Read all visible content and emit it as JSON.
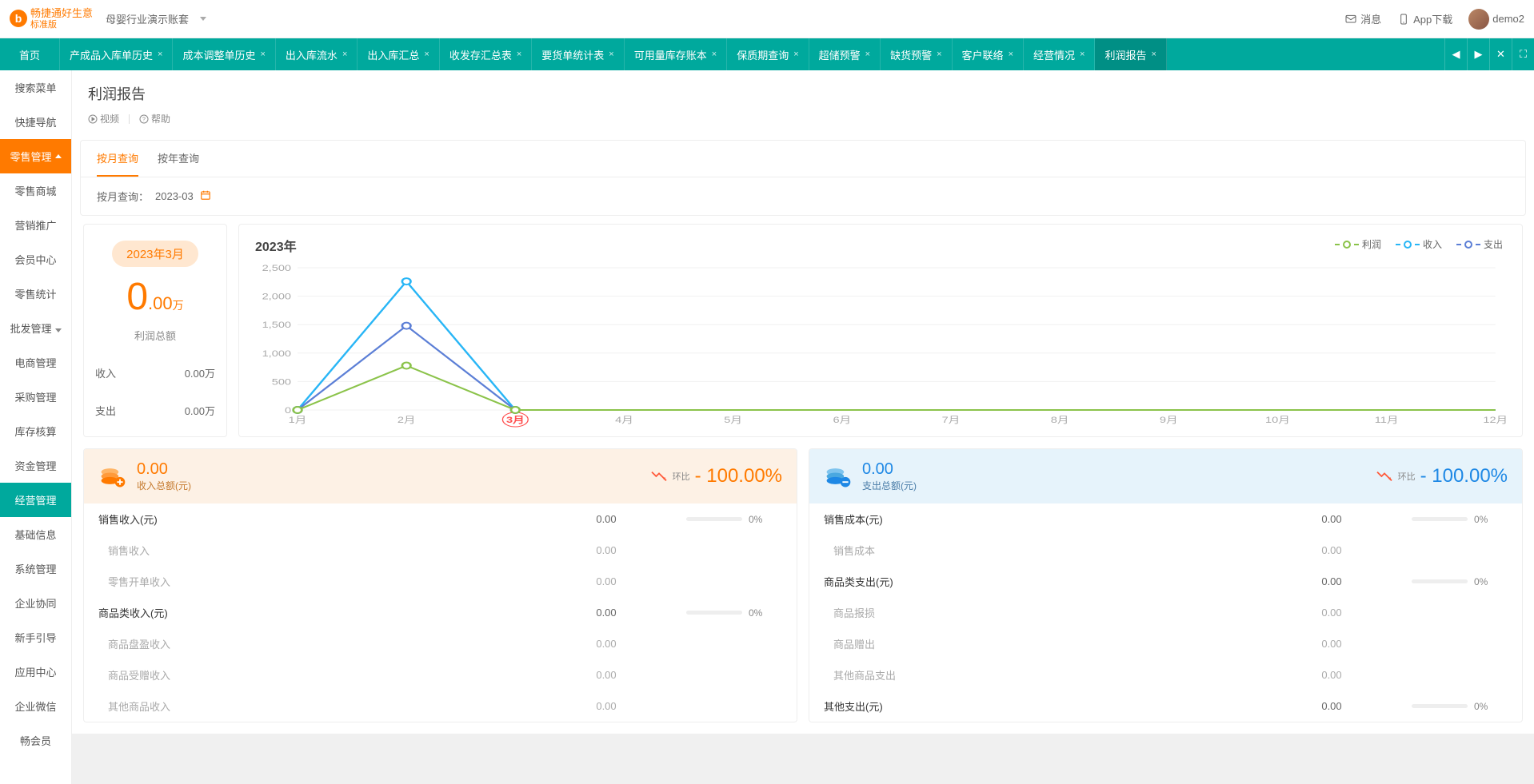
{
  "header": {
    "logo_text": "畅捷通好生意",
    "logo_sub": "标准版",
    "account": "母婴行业演示账套",
    "msg": "消息",
    "app": "App下载",
    "user": "demo2"
  },
  "tabs_ctrl": {
    "left": "◀",
    "right": "▶",
    "close": "✕",
    "expand": "⛶"
  },
  "tabs": [
    {
      "label": "首页",
      "closable": false
    },
    {
      "label": "产成品入库单历史",
      "closable": true
    },
    {
      "label": "成本调整单历史",
      "closable": true
    },
    {
      "label": "出入库流水",
      "closable": true
    },
    {
      "label": "出入库汇总",
      "closable": true
    },
    {
      "label": "收发存汇总表",
      "closable": true
    },
    {
      "label": "要货单统计表",
      "closable": true
    },
    {
      "label": "可用量库存账本",
      "closable": true
    },
    {
      "label": "保质期查询",
      "closable": true
    },
    {
      "label": "超储预警",
      "closable": true
    },
    {
      "label": "缺货预警",
      "closable": true
    },
    {
      "label": "客户联络",
      "closable": true
    },
    {
      "label": "经营情况",
      "closable": true
    },
    {
      "label": "利润报告",
      "closable": true,
      "active": true
    }
  ],
  "sidebar": [
    {
      "label": "搜索菜单"
    },
    {
      "label": "快捷导航"
    },
    {
      "label": "零售管理",
      "active_orange": true,
      "chev": "up"
    },
    {
      "label": "零售商城"
    },
    {
      "label": "营销推广"
    },
    {
      "label": "会员中心"
    },
    {
      "label": "零售统计"
    },
    {
      "label": "批发管理",
      "chev": "down"
    },
    {
      "label": "电商管理"
    },
    {
      "label": "采购管理"
    },
    {
      "label": "库存核算"
    },
    {
      "label": "资金管理"
    },
    {
      "label": "经营管理",
      "active_teal": true
    },
    {
      "label": "基础信息"
    },
    {
      "label": "系统管理"
    },
    {
      "label": "企业协同"
    },
    {
      "label": "新手引导"
    },
    {
      "label": "应用中心"
    },
    {
      "label": "企业微信"
    },
    {
      "label": "畅会员"
    }
  ],
  "page": {
    "title": "利润报告",
    "video": "视频",
    "help": "帮助",
    "sub_tabs": [
      "按月查询",
      "按年查询"
    ],
    "filter_label": "按月查询：",
    "filter_value": "2023-03"
  },
  "summary": {
    "period": "2023年3月",
    "big_int": "0",
    "big_dec": ".00",
    "big_unit": "万",
    "label": "利润总额",
    "rows": [
      {
        "k": "收入",
        "v": "0.00万"
      },
      {
        "k": "支出",
        "v": "0.00万"
      }
    ]
  },
  "chart": {
    "title": "2023年",
    "legend": [
      {
        "name": "利润",
        "color": "#8bc34a"
      },
      {
        "name": "收入",
        "color": "#29b6f6"
      },
      {
        "name": "支出",
        "color": "#5c7fd6"
      }
    ],
    "yticks": [
      0,
      500,
      1000,
      1500,
      2000,
      2500
    ],
    "ylim": [
      0,
      2500
    ],
    "xlabels": [
      "1月",
      "2月",
      "3月",
      "4月",
      "5月",
      "6月",
      "7月",
      "8月",
      "9月",
      "10月",
      "11月",
      "12月"
    ],
    "highlight_x": 2,
    "series": {
      "profit": [
        0,
        780,
        0,
        0,
        0,
        0,
        0,
        0,
        0,
        0,
        0,
        0
      ],
      "income": [
        0,
        2260,
        0,
        0,
        0,
        0,
        0,
        0,
        0,
        0,
        0,
        0
      ],
      "expense": [
        0,
        1480,
        0,
        0,
        0,
        0,
        0,
        0,
        0,
        0,
        0,
        0
      ]
    },
    "colors": {
      "profit": "#8bc34a",
      "income": "#29b6f6",
      "expense": "#5c7fd6"
    },
    "grid_color": "#f0f0f0",
    "axis_label_color": "#aaa"
  },
  "panels": {
    "income": {
      "value": "0.00",
      "label": "收入总额(元)",
      "hb_label": "环比",
      "hb_value": "- 100.00%",
      "accent": "#ff7a00",
      "rows": [
        {
          "label": "销售收入(元)",
          "val": "0.00",
          "pct": "0%",
          "sub": false
        },
        {
          "label": "销售收入",
          "val": "0.00",
          "sub": true
        },
        {
          "label": "零售开单收入",
          "val": "0.00",
          "sub": true
        },
        {
          "label": "商品类收入(元)",
          "val": "0.00",
          "pct": "0%",
          "sub": false
        },
        {
          "label": "商品盘盈收入",
          "val": "0.00",
          "sub": true
        },
        {
          "label": "商品受赠收入",
          "val": "0.00",
          "sub": true
        },
        {
          "label": "其他商品收入",
          "val": "0.00",
          "sub": true
        }
      ]
    },
    "expense": {
      "value": "0.00",
      "label": "支出总额(元)",
      "hb_label": "环比",
      "hb_value": "- 100.00%",
      "accent": "#1e88e5",
      "rows": [
        {
          "label": "销售成本(元)",
          "val": "0.00",
          "pct": "0%",
          "sub": false
        },
        {
          "label": "销售成本",
          "val": "0.00",
          "sub": true
        },
        {
          "label": "商品类支出(元)",
          "val": "0.00",
          "pct": "0%",
          "sub": false
        },
        {
          "label": "商品报损",
          "val": "0.00",
          "sub": true
        },
        {
          "label": "商品赠出",
          "val": "0.00",
          "sub": true
        },
        {
          "label": "其他商品支出",
          "val": "0.00",
          "sub": true
        },
        {
          "label": "其他支出(元)",
          "val": "0.00",
          "pct": "0%",
          "sub": false
        }
      ]
    }
  }
}
